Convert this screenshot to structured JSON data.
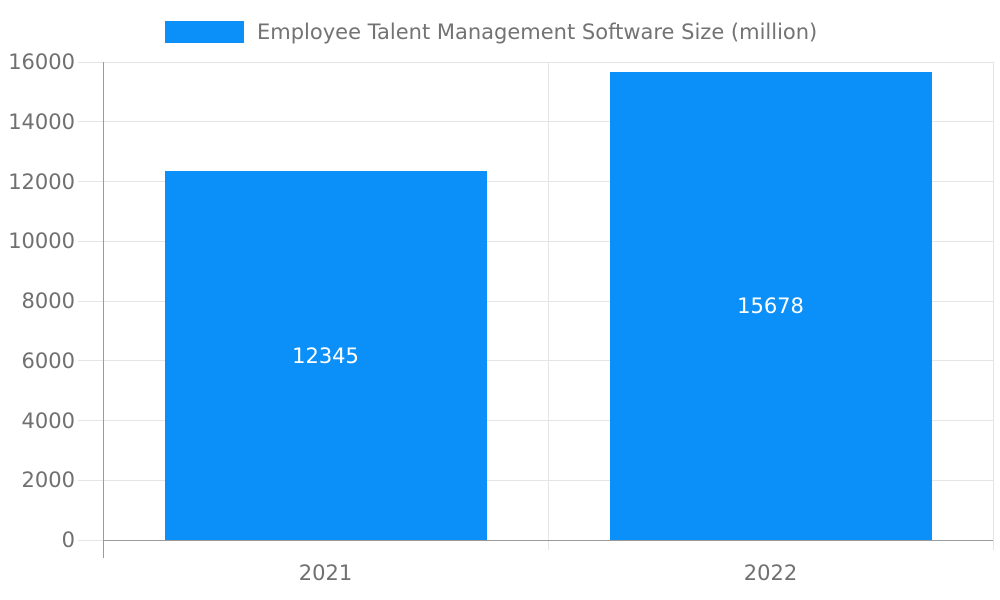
{
  "chart_data": {
    "type": "bar",
    "title": "",
    "legend": [
      "Employee Talent Management Software Size (million)"
    ],
    "categories": [
      "2021",
      "2022"
    ],
    "series": [
      {
        "name": "Employee Talent Management Software Size (million)",
        "values": [
          12345,
          15678
        ]
      }
    ],
    "data_labels": [
      "12345",
      "15678"
    ],
    "xlabel": "",
    "ylabel": "",
    "ylim": [
      0,
      16000
    ],
    "yticks": [
      0,
      2000,
      4000,
      6000,
      8000,
      10000,
      12000,
      14000,
      16000
    ],
    "grid": true,
    "legend_position": "top",
    "colors": {
      "bar": "#0a90f8",
      "data_label": "#ffffff",
      "axis_label": "#707070",
      "legend_text": "#737373",
      "axis_line": "#9a9a9a",
      "gridline": "#e5e5e5",
      "background": "#ffffff"
    }
  }
}
